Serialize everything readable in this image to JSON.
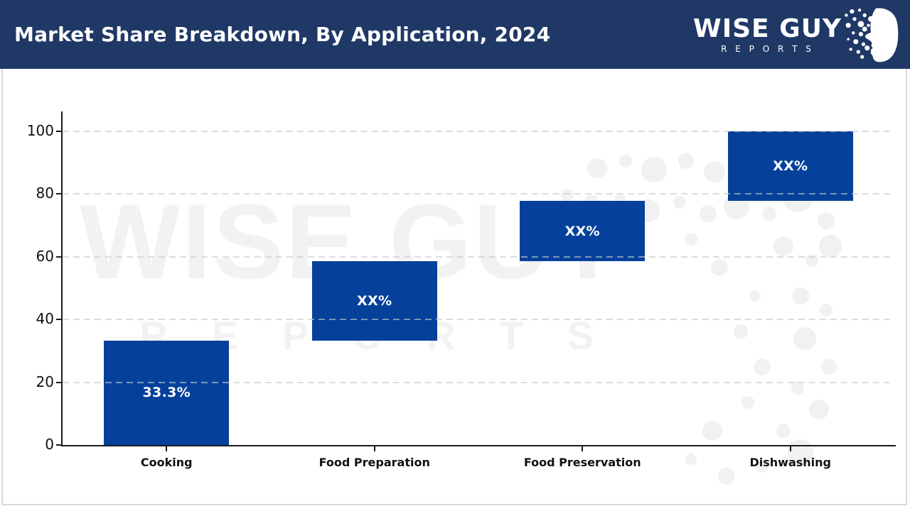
{
  "header": {
    "title": "Market Share Breakdown, By Application, 2024",
    "logo": {
      "line1": "WISE GUY",
      "line2": "R E P O R T S"
    }
  },
  "watermark": {
    "line1": "WISE GUY",
    "line2": "R E P O R T S"
  },
  "colors": {
    "header_bg": "#1f3866",
    "bar_blue": "#05419b",
    "axis": "#1a1a1a",
    "gridline_gray": "#c8c8c8",
    "watermark_gray": "#f2f2f2",
    "frame_gray": "#d9d9d9",
    "bar_label_white": "#ffffff"
  },
  "chart_data": {
    "type": "waterfall",
    "title": "Market Share Breakdown, By Application, 2024",
    "xlabel": "",
    "ylabel": "",
    "categories": [
      "Cooking",
      "Food Preparation",
      "Food Preservation",
      "Dishwashing"
    ],
    "segments": [
      {
        "category": "Cooking",
        "start": 0,
        "end": 33.3,
        "label": "33.3%"
      },
      {
        "category": "Food Preparation",
        "start": 33.3,
        "end": 58.6,
        "label": "XX%"
      },
      {
        "category": "Food Preservation",
        "start": 58.6,
        "end": 77.8,
        "label": "XX%"
      },
      {
        "category": "Dishwashing",
        "start": 77.8,
        "end": 100,
        "label": "XX%"
      }
    ],
    "yticks": [
      0,
      20,
      40,
      60,
      80,
      100
    ],
    "ylim": [
      0,
      106
    ],
    "bar_color": "#05419b",
    "grid": "horizontal-dashed",
    "legend": "none"
  }
}
